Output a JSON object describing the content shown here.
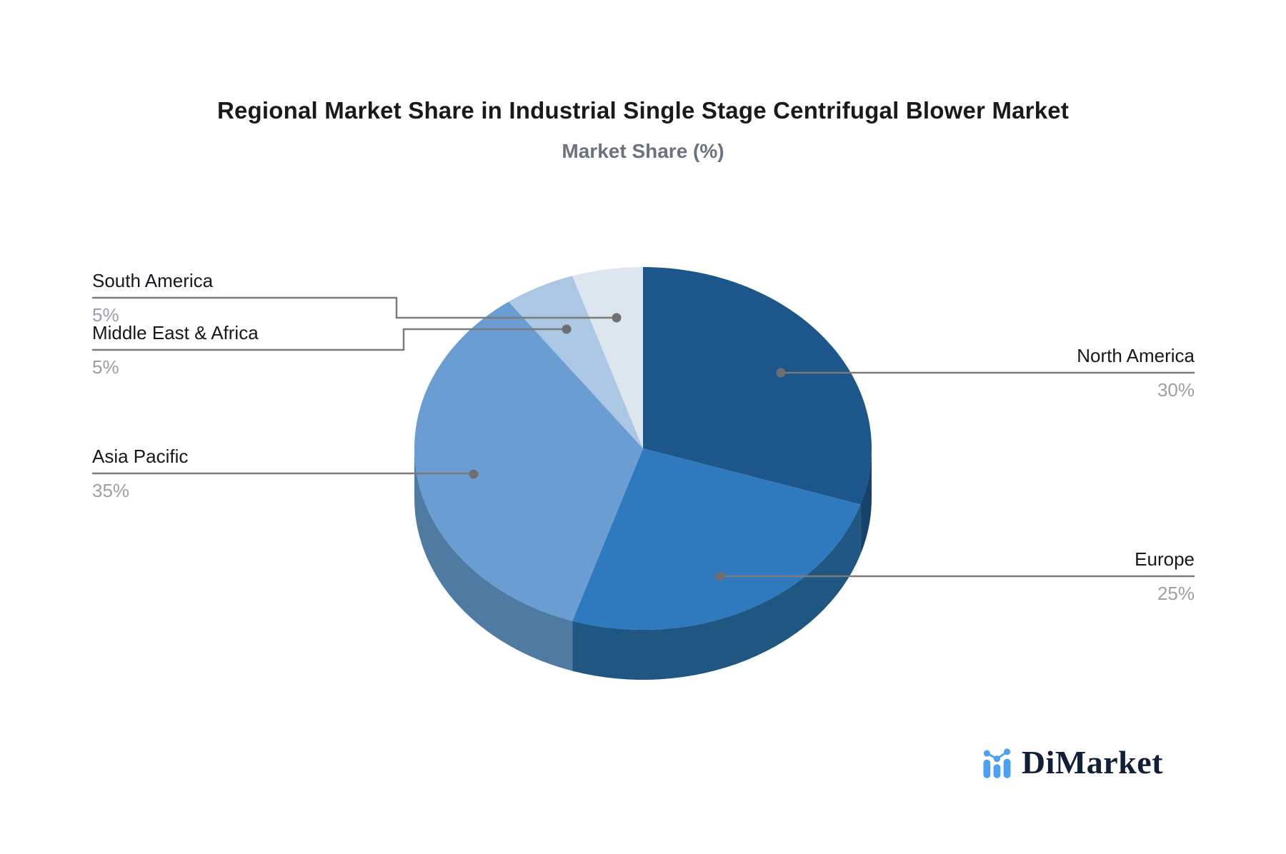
{
  "header": {
    "title": "Regional Market Share in Industrial Single Stage Centrifugal Blower Market",
    "subtitle": "Market Share (%)"
  },
  "chart_data": {
    "type": "pie",
    "style": "3d",
    "title": "Regional Market Share in Industrial Single Stage Centrifugal Blower Market",
    "subtitle": "Market Share (%)",
    "unit": "%",
    "direction": "clockwise",
    "start_angle_deg": 0,
    "categories": [
      "North America",
      "Europe",
      "Asia Pacific",
      "Middle East & Africa",
      "South America"
    ],
    "values": [
      30,
      25,
      35,
      5,
      5
    ],
    "percent_labels": [
      "30%",
      "25%",
      "35%",
      "5%",
      "5%"
    ],
    "colors": [
      "#1C568B",
      "#2F7ABF",
      "#6A9DD1",
      "#ABC7E3",
      "#DDE5EF"
    ],
    "side_colors": [
      "#15436C",
      "#1F5682",
      "#4F7BA3",
      "#7E94AC",
      "#A3ABB8"
    ],
    "label_sides": [
      "right",
      "right",
      "left",
      "left",
      "left"
    ],
    "legend": "callout-labels",
    "callout_line_color": "#7b7b7b",
    "callout_dot_color": "#6f6f6f",
    "label_text_color": "#15181c",
    "value_text_color": "#9ba0a6"
  },
  "branding": {
    "logo_text": "DiMarket",
    "logo_icon": "bar-line-chart-icon",
    "logo_icon_color": "#4AA0F2",
    "logo_text_color": "#121f38"
  }
}
